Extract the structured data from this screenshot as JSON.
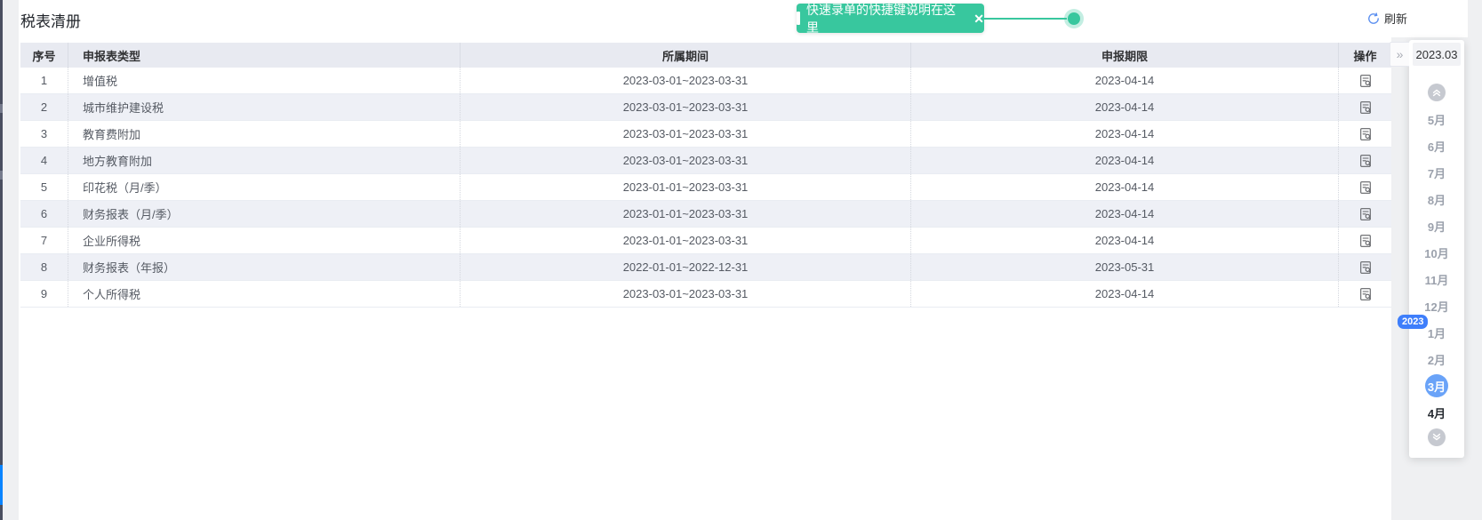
{
  "page": {
    "title": "税表清册"
  },
  "toolbar": {
    "refresh_label": "刷新"
  },
  "tooltip": {
    "text": "快速录单的快捷键说明在这里",
    "close_label": "✕",
    "accent_color": "#38c79e"
  },
  "table": {
    "columns": [
      "序号",
      "申报表类型",
      "所属期间",
      "申报期限",
      "操作"
    ],
    "action_icon": "document-search-icon",
    "rows": [
      {
        "no": "1",
        "type": "增值税",
        "period": "2023-03-01~2023-03-31",
        "deadline": "2023-04-14"
      },
      {
        "no": "2",
        "type": "城市维护建设税",
        "period": "2023-03-01~2023-03-31",
        "deadline": "2023-04-14"
      },
      {
        "no": "3",
        "type": "教育费附加",
        "period": "2023-03-01~2023-03-31",
        "deadline": "2023-04-14"
      },
      {
        "no": "4",
        "type": "地方教育附加",
        "period": "2023-03-01~2023-03-31",
        "deadline": "2023-04-14"
      },
      {
        "no": "5",
        "type": "印花税（月/季）",
        "period": "2023-01-01~2023-03-31",
        "deadline": "2023-04-14"
      },
      {
        "no": "6",
        "type": "财务报表（月/季）",
        "period": "2023-01-01~2023-03-31",
        "deadline": "2023-04-14"
      },
      {
        "no": "7",
        "type": "企业所得税",
        "period": "2023-01-01~2023-03-31",
        "deadline": "2023-04-14"
      },
      {
        "no": "8",
        "type": "财务报表（年报）",
        "period": "2022-01-01~2022-12-31",
        "deadline": "2023-05-31"
      },
      {
        "no": "9",
        "type": "个人所得税",
        "period": "2023-03-01~2023-03-31",
        "deadline": "2023-04-14"
      }
    ]
  },
  "month_panel": {
    "collapse_label": "»",
    "current": "2023.03",
    "year_badge": "2023",
    "selected_color": "#6aa3f8",
    "badge_color": "#3e7efb",
    "months": [
      {
        "label": "5月",
        "state": "default"
      },
      {
        "label": "6月",
        "state": "default"
      },
      {
        "label": "7月",
        "state": "default"
      },
      {
        "label": "8月",
        "state": "default"
      },
      {
        "label": "9月",
        "state": "default"
      },
      {
        "label": "10月",
        "state": "default"
      },
      {
        "label": "11月",
        "state": "default"
      },
      {
        "label": "12月",
        "state": "default"
      },
      {
        "label": "1月",
        "state": "default"
      },
      {
        "label": "2月",
        "state": "default"
      },
      {
        "label": "3月",
        "state": "selected"
      },
      {
        "label": "4月",
        "state": "emphasis"
      }
    ]
  }
}
